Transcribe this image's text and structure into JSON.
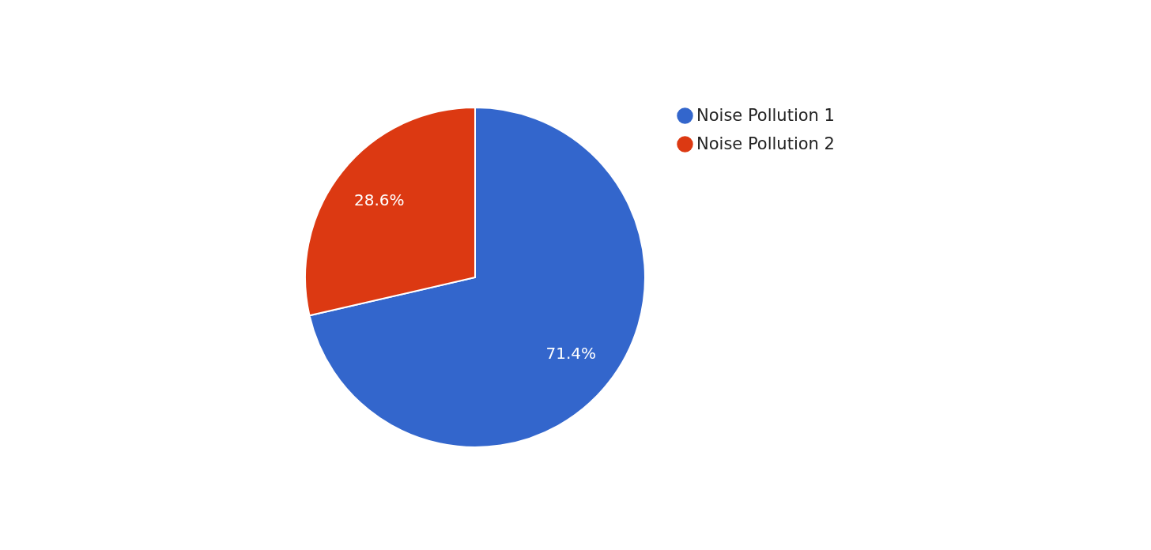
{
  "chart_data": {
    "type": "pie",
    "categories": [
      "Noise Pollution 1",
      "Noise Pollution 2"
    ],
    "values": [
      71.4,
      28.6
    ],
    "colors": [
      "#3366cc",
      "#dc3912"
    ],
    "value_labels": [
      "71.4%",
      "28.6%"
    ],
    "legend": "top right"
  }
}
